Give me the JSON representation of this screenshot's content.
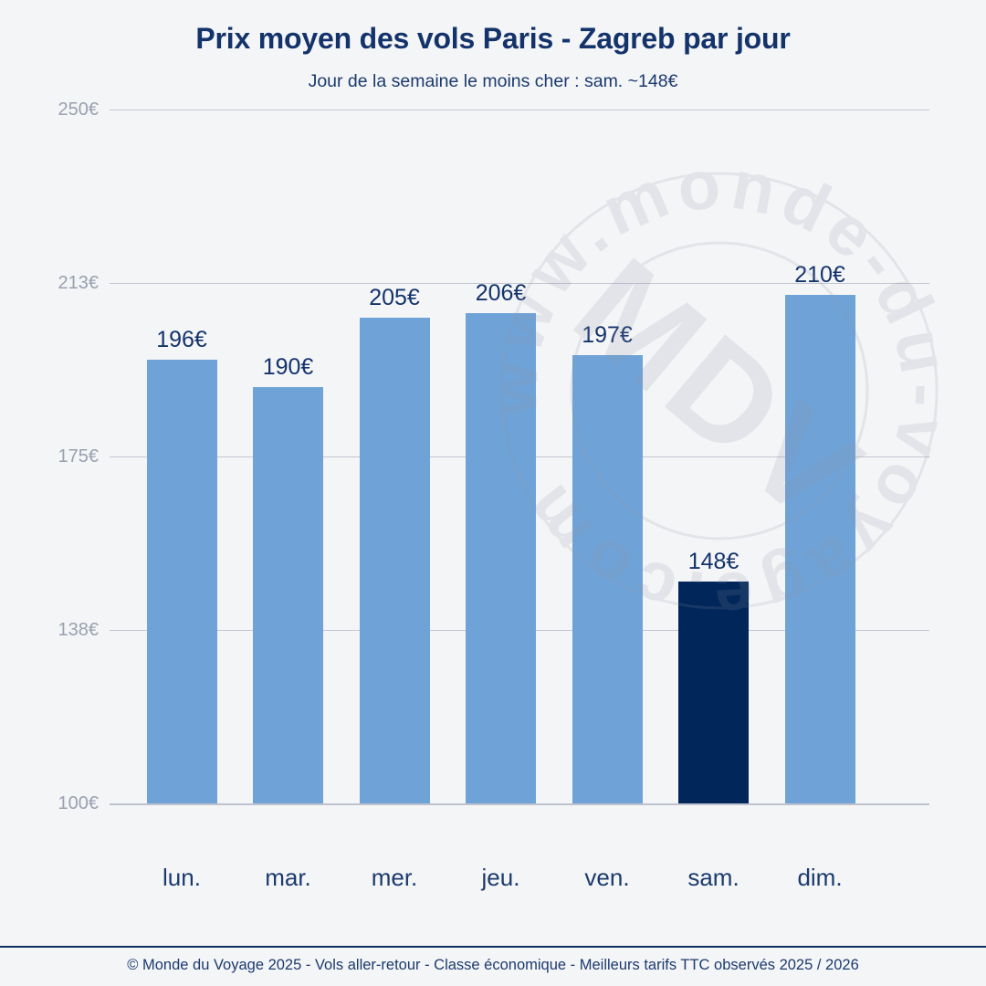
{
  "header": {
    "title": "Prix moyen des vols Paris - Zagreb par jour",
    "subtitle": "Jour de la semaine le moins cher : sam. ~148€"
  },
  "watermark": {
    "ring_text": "www.monde-du-voyage.com",
    "center_text": "MDV"
  },
  "footer": {
    "text": "© Monde du Voyage 2025 - Vols aller-retour - Classe économique - Meilleurs tarifs TTC observés 2025 / 2026"
  },
  "colors": {
    "background": "#f4f5f7",
    "bar": "#6fa3d8",
    "bar_highlight": "#01265a",
    "navy_text": "#14336b",
    "axis_label": "#99a0af",
    "gridline": "#c3c7d2",
    "footer_line": "#0d2f5f"
  },
  "chart_data": {
    "type": "bar",
    "title": "Prix moyen des vols Paris - Zagreb par jour",
    "subtitle": "Jour de la semaine le moins cher : sam. ~148€",
    "categories": [
      "lun.",
      "mar.",
      "mer.",
      "jeu.",
      "ven.",
      "sam.",
      "dim."
    ],
    "values": [
      196,
      190,
      205,
      206,
      197,
      148,
      210
    ],
    "bar_labels": [
      "196€",
      "190€",
      "205€",
      "206€",
      "197€",
      "148€",
      "210€"
    ],
    "highlight_index": 5,
    "highlight_meaning": "cheapest day",
    "ylim": [
      100,
      250
    ],
    "yticks": [
      {
        "label": "250€",
        "value": 250
      },
      {
        "label": "213€",
        "value": 212.5
      },
      {
        "label": "175€",
        "value": 175
      },
      {
        "label": "138€",
        "value": 137.5
      },
      {
        "label": "100€",
        "value": 100
      }
    ],
    "grid": "horizontal",
    "legend": "none",
    "bar_color": "#6fa3d8",
    "highlight_color": "#01265a"
  }
}
